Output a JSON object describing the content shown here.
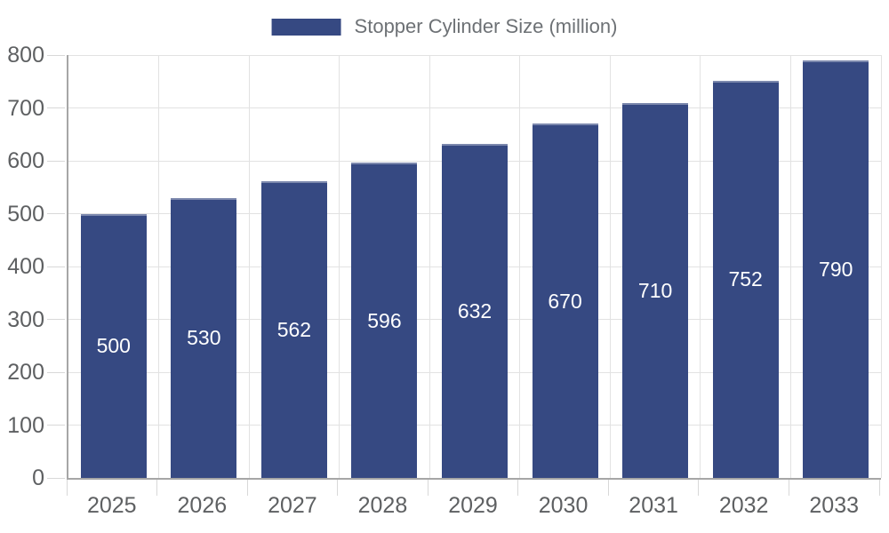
{
  "legend": {
    "label": "Stopper Cylinder Size (million)"
  },
  "chart_data": {
    "type": "bar",
    "title": "",
    "xlabel": "",
    "ylabel": "",
    "categories": [
      "2025",
      "2026",
      "2027",
      "2028",
      "2029",
      "2030",
      "2031",
      "2032",
      "2033"
    ],
    "series": [
      {
        "name": "Stopper Cylinder Size (million)",
        "values": [
          500,
          530,
          562,
          596,
          632,
          670,
          710,
          752,
          790
        ]
      }
    ],
    "values": [
      500,
      530,
      562,
      596,
      632,
      670,
      710,
      752,
      790
    ],
    "value_labels_position": "inside-center",
    "ylim": [
      0,
      800
    ],
    "ytick_step": 100,
    "grid": true,
    "legend_position": "top-center",
    "bar_color": "#364982"
  },
  "theme": {
    "background": "#ffffff",
    "grid_color": "#e2e2e2",
    "tick_color": "#d8d8d8",
    "axis_line_color": "#a6a6a6",
    "tick_label_color": "#5e6062",
    "legend_text_color": "#6d7175",
    "value_label_color": "#ffffff"
  }
}
